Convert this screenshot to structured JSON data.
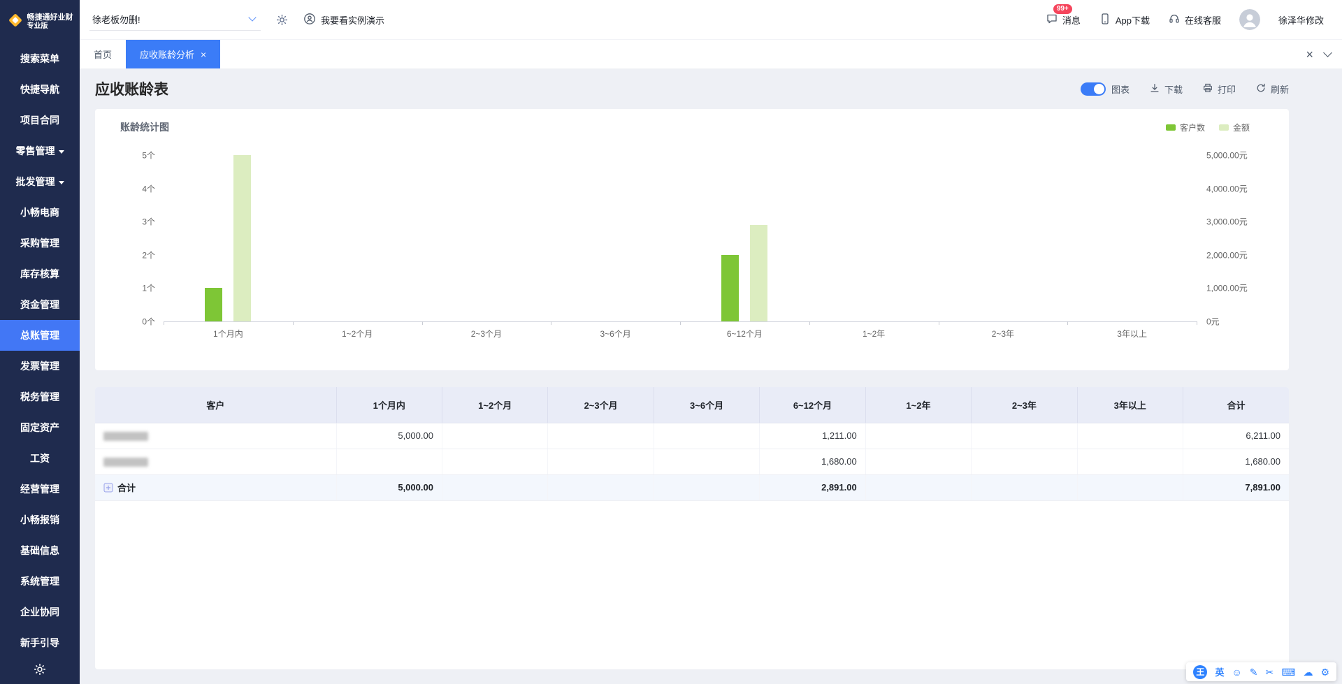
{
  "app": {
    "brand_line1": "畅捷通好业财",
    "brand_line2": "专业版"
  },
  "theme": {
    "accent": "#3b7cf7",
    "sidebar_bg": "#1f2b4e",
    "badge_bg": "#f5455c"
  },
  "sidebar": {
    "items": [
      {
        "label": "搜索菜单"
      },
      {
        "label": "快捷导航"
      },
      {
        "label": "项目合同"
      },
      {
        "label": "零售管理",
        "has_arrow": true
      },
      {
        "label": "批发管理",
        "has_arrow": true
      },
      {
        "label": "小畅电商"
      },
      {
        "label": "采购管理"
      },
      {
        "label": "库存核算"
      },
      {
        "label": "资金管理"
      },
      {
        "label": "总账管理",
        "active": true
      },
      {
        "label": "发票管理"
      },
      {
        "label": "税务管理"
      },
      {
        "label": "固定资产"
      },
      {
        "label": "工资"
      },
      {
        "label": "经营管理"
      },
      {
        "label": "小畅报销"
      },
      {
        "label": "基础信息"
      },
      {
        "label": "系统管理"
      },
      {
        "label": "企业协同"
      },
      {
        "label": "新手引导"
      }
    ]
  },
  "topbar": {
    "company_selector": "徐老板勿删!",
    "demo_link": "我要看实例演示",
    "messages_label": "消息",
    "messages_badge": "99+",
    "app_download_label": "App下载",
    "support_label": "在线客服",
    "username": "徐泽华修改"
  },
  "tabs": [
    {
      "label": "首页",
      "active": false,
      "closable": false
    },
    {
      "label": "应收账龄分析",
      "active": true,
      "closable": true
    }
  ],
  "page": {
    "title": "应收账龄表",
    "toggle_label": "图表",
    "download_label": "下载",
    "print_label": "打印",
    "refresh_label": "刷新"
  },
  "chart_data": {
    "type": "bar",
    "title": "账龄统计图",
    "categories": [
      "1个月内",
      "1~2个月",
      "2~3个月",
      "3~6个月",
      "6~12个月",
      "1~2年",
      "2~3年",
      "3年以上"
    ],
    "series": [
      {
        "name": "客户数",
        "color": "#7ec636",
        "axis": "left",
        "values": [
          1,
          0,
          0,
          0,
          2,
          0,
          0,
          0
        ]
      },
      {
        "name": "金额",
        "color": "#dcedc0",
        "axis": "right",
        "values": [
          5000,
          0,
          0,
          0,
          2891,
          0,
          0,
          0
        ]
      }
    ],
    "left_axis": {
      "ticks": [
        "5个",
        "4个",
        "3个",
        "2个",
        "1个",
        "0个"
      ],
      "max": 5
    },
    "right_axis": {
      "ticks": [
        "5,000.00元",
        "4,000.00元",
        "3,000.00元",
        "2,000.00元",
        "1,000.00元",
        "0元"
      ],
      "max": 5000
    },
    "legend_position": "top-right",
    "grid": false
  },
  "table": {
    "headers": [
      "客户",
      "1个月内",
      "1~2个月",
      "2~3个月",
      "3~6个月",
      "6~12个月",
      "1~2年",
      "2~3年",
      "3年以上",
      "合计"
    ],
    "rows": [
      {
        "customer_blurred": true,
        "values": [
          "5,000.00",
          "",
          "",
          "",
          "1,211.00",
          "",
          "",
          "",
          "6,211.00"
        ]
      },
      {
        "customer_blurred": true,
        "values": [
          "",
          "",
          "",
          "",
          "1,680.00",
          "",
          "",
          "",
          "1,680.00"
        ]
      }
    ],
    "total_row": {
      "label": "合计",
      "values": [
        "5,000.00",
        "",
        "",
        "",
        "2,891.00",
        "",
        "",
        "",
        "7,891.00"
      ]
    }
  },
  "ime": {
    "logo": "王",
    "lang": "英"
  }
}
